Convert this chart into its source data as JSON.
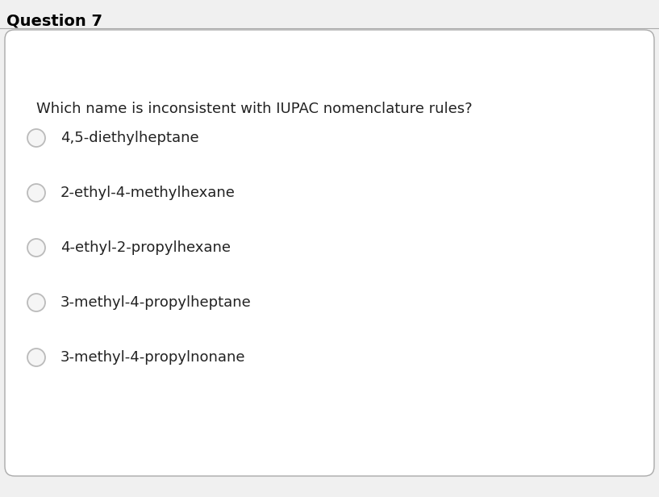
{
  "title": "Question 7",
  "question": "Which name is inconsistent with IUPAC nomenclature rules?",
  "options": [
    "4,5-diethylheptane",
    "2-ethyl-4-methylhexane",
    "4-ethyl-2-propylhexane",
    "3-methyl-4-propylheptane",
    "3-methyl-4-propylnonane"
  ],
  "bg_color": "#f0f0f0",
  "box_color": "#ffffff",
  "border_color": "#aaaaaa",
  "title_color": "#000000",
  "question_color": "#222222",
  "option_color": "#222222",
  "title_fontsize": 14,
  "question_fontsize": 13,
  "option_fontsize": 13,
  "circle_edge_color": "#bbbbbb",
  "circle_face_color": "#f5f5f5"
}
